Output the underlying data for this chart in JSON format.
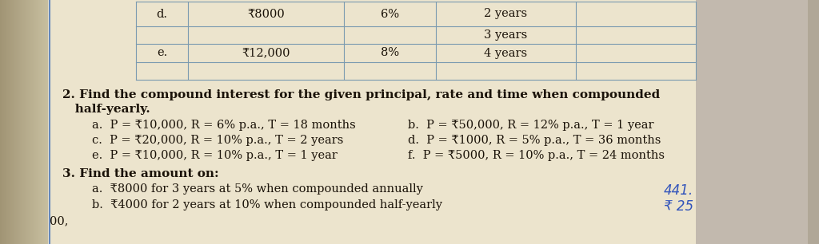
{
  "bg_color": "#c8bfa0",
  "page_color": "#e8e0cc",
  "text_color": "#1a1208",
  "table_line_color": "#7a9ab0",
  "section2_heading_line1": "2. Find the compound interest for the given principal, rate and time when compounded",
  "section2_heading_line2": "   half-yearly.",
  "section2_items_left": [
    "a.  P = ₹10,000, R = 6% p.a., T = 18 months",
    "c.  P = ₹20,000, R = 10% p.a., T = 2 years",
    "e.  P = ₹10,000, R = 10% p.a., T = 1 year"
  ],
  "section2_items_right": [
    "b.  P = ₹50,000, R = 12% p.a., T = 1 year",
    "d.  P = ₹1000, R = 5% p.a., T = 36 months",
    "f.  P = ₹5000, R = 10% p.a., T = 24 months"
  ],
  "section3_heading": "3. Find the amount on:",
  "section3_items": [
    "a.  ₹8000 for 3 years at 5% when compounded annually",
    "b.  ₹4000 for 2 years at 10% when compounded half-yearly"
  ],
  "table_rows": [
    [
      "d.",
      "₹8000",
      "6%",
      "2 years",
      ""
    ],
    [
      "",
      "",
      "",
      "3 years",
      ""
    ],
    [
      "e.",
      "₹12,000",
      "8%",
      "4 years",
      ""
    ]
  ],
  "handwritten_a": "441.",
  "handwritten_b": "₹ 25",
  "fs_body": 10.5,
  "fs_heading": 11.0,
  "fs_hand": 12
}
